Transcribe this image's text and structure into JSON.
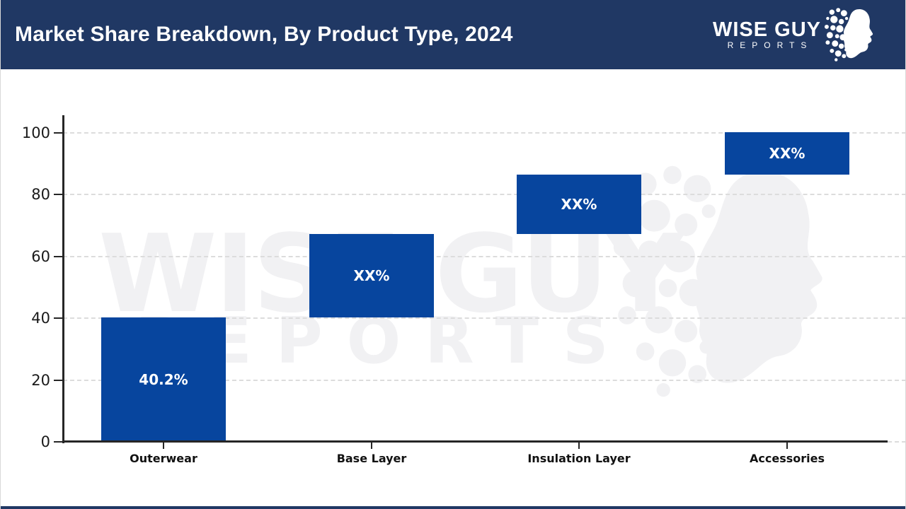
{
  "header": {
    "title": "Market Share Breakdown, By Product Type, 2024",
    "logo": {
      "line1": "WISE GUY",
      "line2": "REPORTS"
    }
  },
  "watermark": {
    "line1": "WISE GUY",
    "line2": "REPORTS"
  },
  "chart_data": {
    "type": "bar",
    "subtype": "waterfall",
    "title": "Market Share Breakdown, By Product Type, 2024",
    "categories": [
      "Outerwear",
      "Base Layer",
      "Insulation Layer",
      "Accessories"
    ],
    "segments": [
      {
        "category": "Outerwear",
        "from": 0,
        "to": 40.2,
        "label": "40.2%"
      },
      {
        "category": "Base Layer",
        "from": 40.2,
        "to": 67.2,
        "label": "XX%"
      },
      {
        "category": "Insulation Layer",
        "from": 67.2,
        "to": 86.4,
        "label": "XX%"
      },
      {
        "category": "Accessories",
        "from": 86.4,
        "to": 100.3,
        "label": "XX%"
      }
    ],
    "yticks": [
      0,
      20,
      40,
      60,
      80,
      100
    ],
    "ylim": [
      0,
      105
    ],
    "xlabel": "",
    "ylabel": "",
    "grid": "horizontal-dashed",
    "legend": "none",
    "bar_color": "#07459E",
    "bar_label_color": "#ffffff"
  },
  "colors": {
    "header_bg": "#203864",
    "bar": "#07459E",
    "watermark": "#f1f1f3",
    "gridline": "#dcdcdc",
    "axis": "#262626"
  }
}
